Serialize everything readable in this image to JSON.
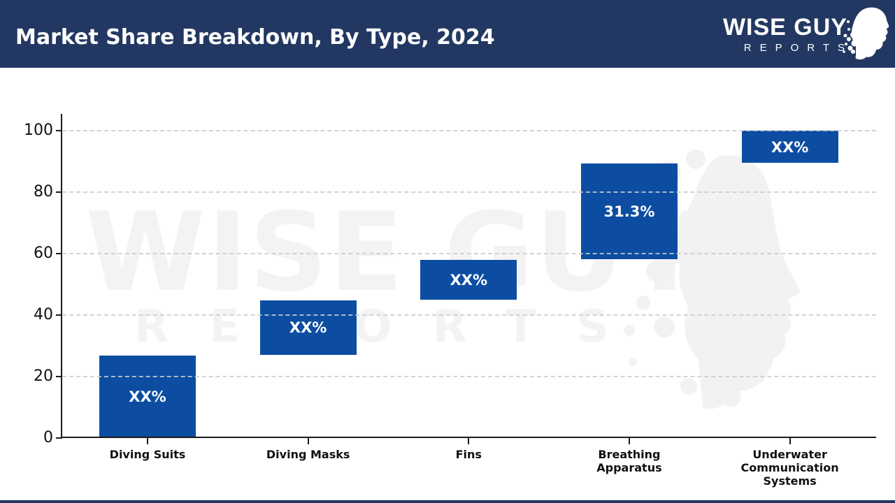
{
  "header": {
    "title": "Market Share Breakdown, By Type, 2024",
    "background": "#223862",
    "logo": {
      "brand": "WISE GUY",
      "sub": "REPORTS"
    }
  },
  "watermark": {
    "brand": "WISE GUY",
    "sub": "REPORTS"
  },
  "footer": {
    "bar_color": "#223862"
  },
  "chart_data": {
    "type": "bar",
    "subtype": "floating-segment-waterfall",
    "title": "Market Share Breakdown, By Type, 2024",
    "xlabel": "",
    "ylabel": "",
    "categories": [
      "Diving Suits",
      "Diving Masks",
      "Fins",
      "Breathing Apparatus",
      "Underwater Communication Systems"
    ],
    "segments": [
      {
        "category": "Diving Suits",
        "start": 0,
        "end": 26.8,
        "value": 26.8,
        "value_label": "XX%"
      },
      {
        "category": "Diving Masks",
        "start": 26.8,
        "end": 44.8,
        "value": 18.0,
        "value_label": "XX%"
      },
      {
        "category": "Fins",
        "start": 44.8,
        "end": 58.0,
        "value": 13.2,
        "value_label": "XX%"
      },
      {
        "category": "Breathing Apparatus",
        "start": 58.0,
        "end": 89.3,
        "value": 31.3,
        "value_label": "31.3%"
      },
      {
        "category": "Underwater Communication Systems",
        "start": 89.3,
        "end": 100.0,
        "value": 10.7,
        "value_label": "XX%"
      }
    ],
    "yaxis": {
      "ticks": [
        0,
        20,
        40,
        60,
        80,
        100
      ],
      "range": [
        0,
        105.5
      ]
    },
    "xaxis": {
      "tick_label_lines": [
        [
          "Diving Suits"
        ],
        [
          "Diving Masks"
        ],
        [
          "Fins"
        ],
        [
          "Breathing",
          "Apparatus"
        ],
        [
          "Underwater",
          "Communication",
          "Systems"
        ]
      ]
    },
    "grid": {
      "show": true,
      "style": "dashed",
      "axis": "y"
    },
    "legend": {
      "show": false
    },
    "colors": {
      "bar": "#0c4da2",
      "bar_label": "#ffffff",
      "grid": "#cccccc",
      "axis": "#1a1a1a",
      "tick_text": "#111111"
    }
  }
}
